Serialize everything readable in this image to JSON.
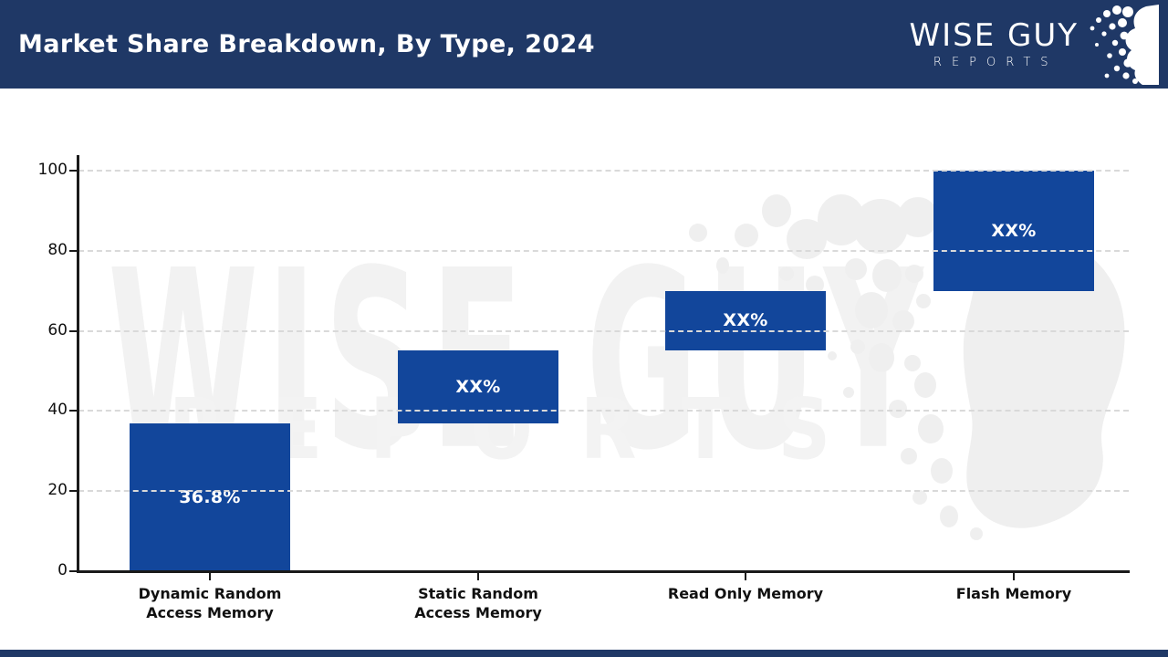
{
  "header": {
    "title": "Market Share Breakdown, By Type, 2024",
    "bg_color": "#1F3866",
    "logo": {
      "line1": "WISE GUY",
      "line2": "REPORTS"
    }
  },
  "watermark": {
    "line1": "WISE GUY",
    "line2": "REPORTS"
  },
  "footer": {
    "bg_color": "#1F3866"
  },
  "chart_data": {
    "type": "bar",
    "subtype": "waterfall",
    "title": "Market Share Breakdown, By Type, 2024",
    "categories": [
      "Dynamic Random Access Memory",
      "Static Random Access Memory",
      "Read Only Memory",
      "Flash Memory"
    ],
    "categories_lines": [
      [
        "Dynamic Random",
        "Access Memory"
      ],
      [
        "Static Random",
        "Access Memory"
      ],
      [
        "Read Only Memory"
      ],
      [
        "Flash Memory"
      ]
    ],
    "segments": [
      {
        "category": "Dynamic Random Access Memory",
        "start": 0,
        "end": 36.8,
        "value": 36.8,
        "label": "36.8%"
      },
      {
        "category": "Static Random Access Memory",
        "start": 36.8,
        "end": 55.2,
        "value": 18.4,
        "label": "XX%"
      },
      {
        "category": "Read Only Memory",
        "start": 55.2,
        "end": 70,
        "value": 14.8,
        "label": "XX%"
      },
      {
        "category": "Flash Memory",
        "start": 70,
        "end": 100,
        "value": 30,
        "label": "XX%"
      }
    ],
    "xlabel": "",
    "ylabel": "",
    "ylim": [
      0,
      100
    ],
    "yticks": [
      0,
      20,
      40,
      60,
      80,
      100
    ],
    "grid": "horizontal-dashed",
    "legend": "none",
    "bar_color": "#12469B",
    "bar_label_color": "#FFFFFF",
    "grid_color": "#D9D9D9",
    "axis_color": "#1A1A1A"
  }
}
